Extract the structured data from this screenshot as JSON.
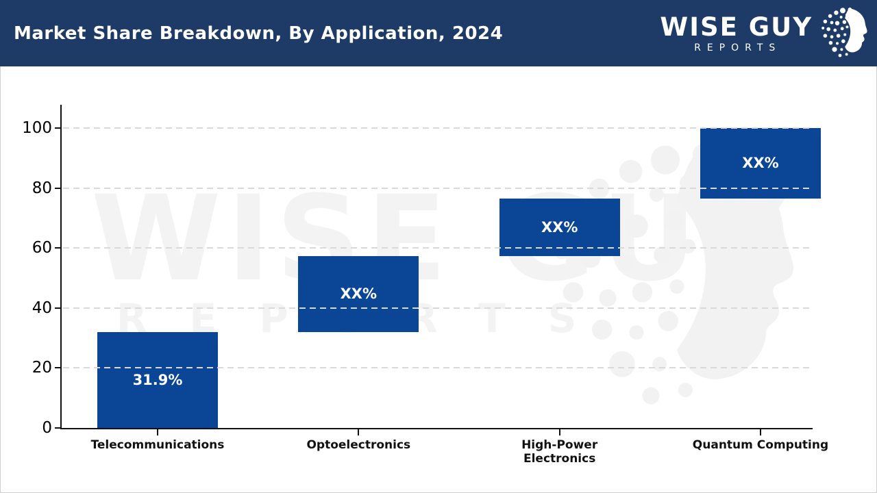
{
  "header": {
    "title": "Market Share Breakdown, By Application, 2024",
    "logo_line1": "WISE GUY",
    "logo_line2": "REPORTS",
    "bg_color": "#1e3a66"
  },
  "watermark": {
    "line1": "WISE GUY",
    "line2": "REPORTS"
  },
  "chart_data": {
    "type": "bar",
    "subtype": "waterfall",
    "title": "Market Share Breakdown, By Application, 2024",
    "categories": [
      "Telecommunications",
      "Optoelectronics",
      "High-Power Electronics",
      "Quantum Computing"
    ],
    "category_lines": [
      [
        "Telecommunications"
      ],
      [
        "Optoelectronics"
      ],
      [
        "High-Power",
        "Electronics"
      ],
      [
        "Quantum Computing"
      ]
    ],
    "series": [
      {
        "name": "Market Share (%)",
        "segments": [
          {
            "category": "Telecommunications",
            "start": 0,
            "end": 31.9
          },
          {
            "category": "Optoelectronics",
            "start": 31.9,
            "end": 57.4
          },
          {
            "category": "High-Power Electronics",
            "start": 57.4,
            "end": 76.5
          },
          {
            "category": "Quantum Computing",
            "start": 76.5,
            "end": 100
          }
        ]
      }
    ],
    "bar_labels": [
      "31.9%",
      "XX%",
      "XX%",
      "XX%"
    ],
    "ylim": [
      0,
      100
    ],
    "yticks": [
      0,
      20,
      40,
      60,
      80,
      100
    ],
    "xlabel": "",
    "ylabel": "",
    "grid": "horizontal-dashed",
    "legend": "none",
    "colors": {
      "bar": "#0b4696",
      "grid": "#d9d9d9",
      "axis": "#111111",
      "header_bg": "#1e3a66",
      "bar_label_text": "#ffffff",
      "watermark": "#f3f3f3"
    }
  }
}
